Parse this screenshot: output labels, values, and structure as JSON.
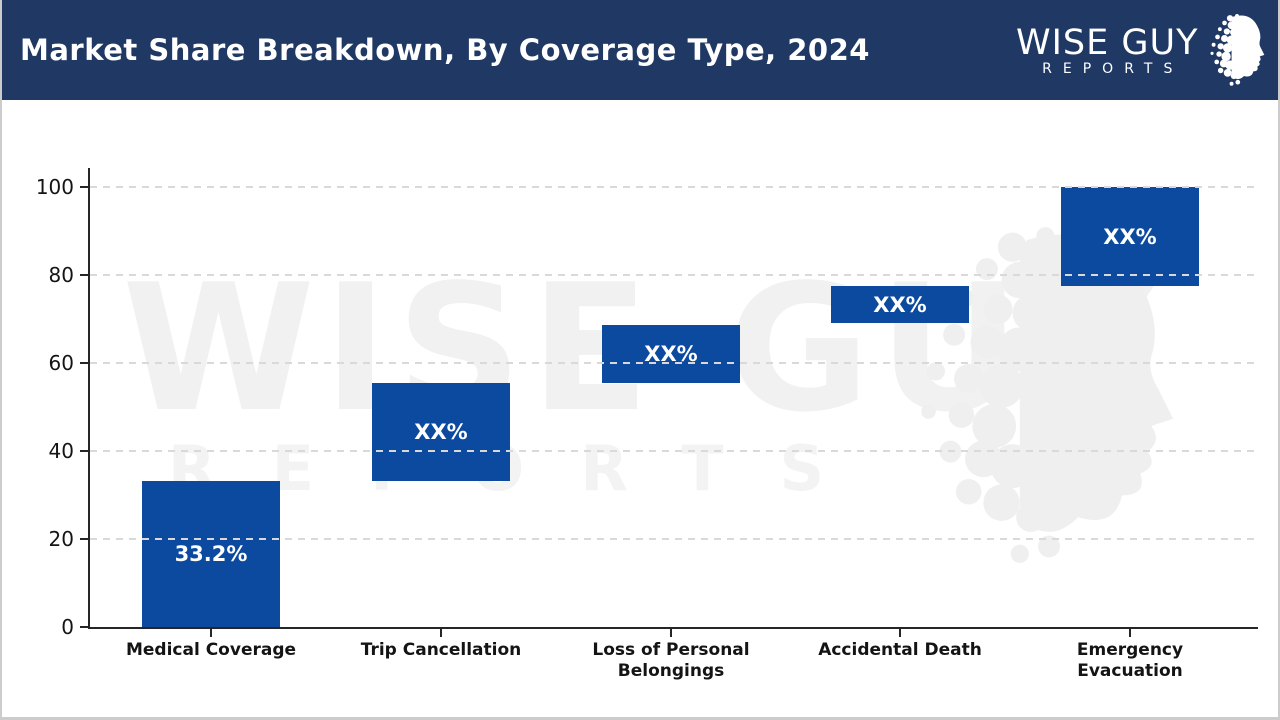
{
  "header": {
    "title": "Market Share Breakdown, By Coverage Type, 2024",
    "brand_line1": "WISE GUY",
    "brand_line2": "REPORTS",
    "bg_color": "#1f3864"
  },
  "watermark": {
    "line1": "WISE GUY",
    "line2": "REPORTS"
  },
  "chart_data": {
    "type": "bar",
    "subtype": "waterfall",
    "title": "Market Share Breakdown, By Coverage Type, 2024",
    "categories": [
      "Medical Coverage",
      "Trip Cancellation",
      "Loss of Personal Belongings",
      "Accidental Death",
      "Emergency Evacuation"
    ],
    "bars": [
      {
        "category": "Medical Coverage",
        "start": 0,
        "end": 33.2,
        "label": "33.2%"
      },
      {
        "category": "Trip Cancellation",
        "start": 33.2,
        "end": 55.5,
        "label": "XX%"
      },
      {
        "category": "Loss of Personal Belongings",
        "start": 55.5,
        "end": 68.6,
        "label": "XX%"
      },
      {
        "category": "Accidental Death",
        "start": 69.0,
        "end": 77.4,
        "label": "XX%"
      },
      {
        "category": "Emergency Evacuation",
        "start": 77.5,
        "end": 100,
        "label": "XX%"
      }
    ],
    "xlabel": "",
    "ylabel": "",
    "ylim": [
      0,
      100
    ],
    "yticks": [
      0,
      20,
      40,
      60,
      80,
      100
    ],
    "grid": "horizontal dashed, drawn over bars",
    "legend": "none",
    "bar_color": "#0b4a9e",
    "bar_label_color": "#ffffff",
    "axis_color": "#262626"
  }
}
